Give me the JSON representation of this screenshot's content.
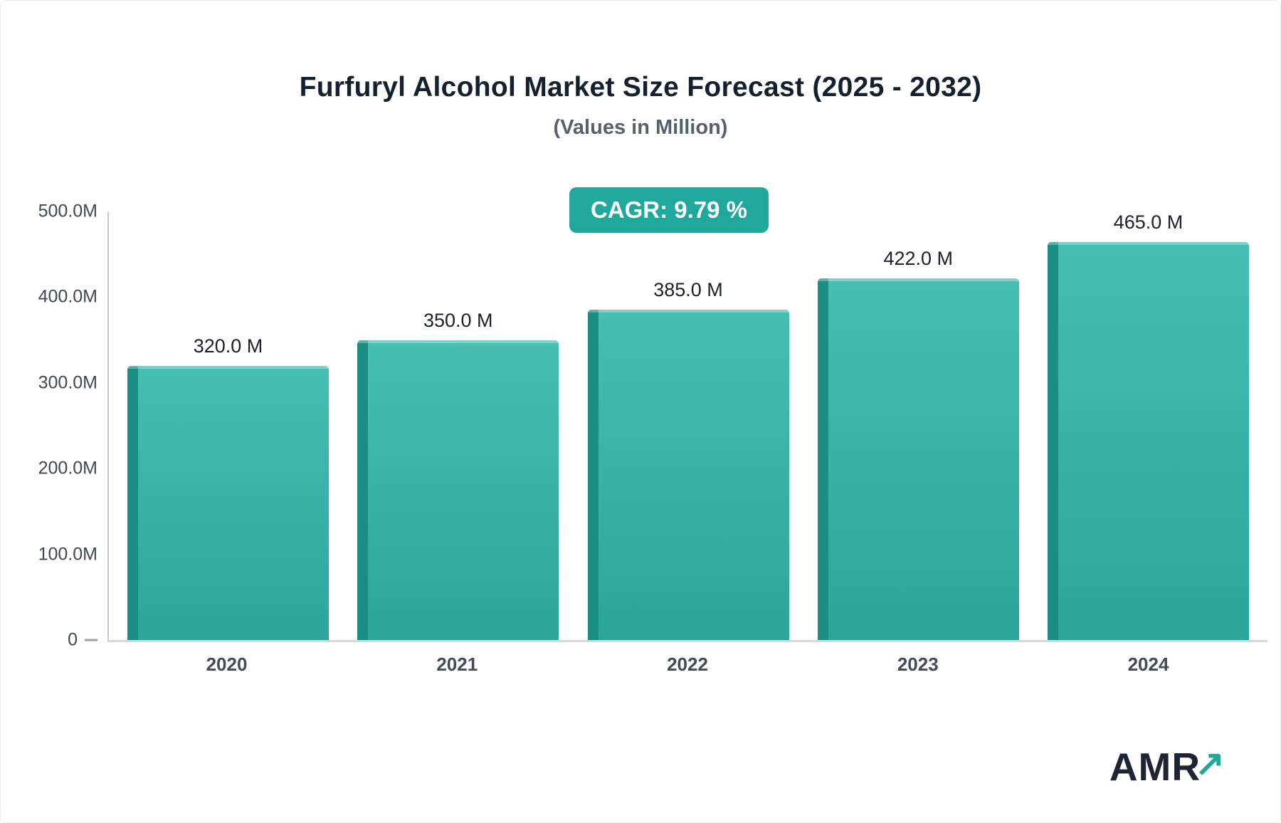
{
  "page": {
    "title": "Furfuryl Alcohol Market Size Forecast (2025 - 2032)",
    "subtitle": "(Values in Million)",
    "cagr_badge": "CAGR: 9.79 %"
  },
  "colors": {
    "accent_teal": "#1fa89b",
    "bar_gradient_top": "#46beb3",
    "bar_gradient_bottom": "#2ba69b",
    "bar_side_dark": "#1a8d84",
    "axis_gray": "#c6ccd4",
    "text_dark": "#15202e",
    "text_gray": "#57606d",
    "logo_navy": "#1d2534"
  },
  "chart_data": {
    "type": "bar",
    "title": "Furfuryl Alcohol Market Size Forecast (2025 - 2032)",
    "subtitle": "(Values in Million)",
    "annotation": "CAGR: 9.79 %",
    "unit": "Million",
    "categories": [
      "2020",
      "2021",
      "2022",
      "2023",
      "2024"
    ],
    "values": [
      320.0,
      350.0,
      385.0,
      422.0,
      465.0
    ],
    "value_labels": [
      "320.0 M",
      "350.0 M",
      "385.0 M",
      "422.0 M",
      "465.0 M"
    ],
    "y_ticks": [
      "500.0M",
      "400.0M",
      "300.0M",
      "200.0M",
      "100.0M",
      "0"
    ],
    "ylim": [
      0,
      500
    ],
    "grid": false,
    "legend": false
  },
  "logo": {
    "text": "AMR",
    "arrow_icon": "↗"
  }
}
